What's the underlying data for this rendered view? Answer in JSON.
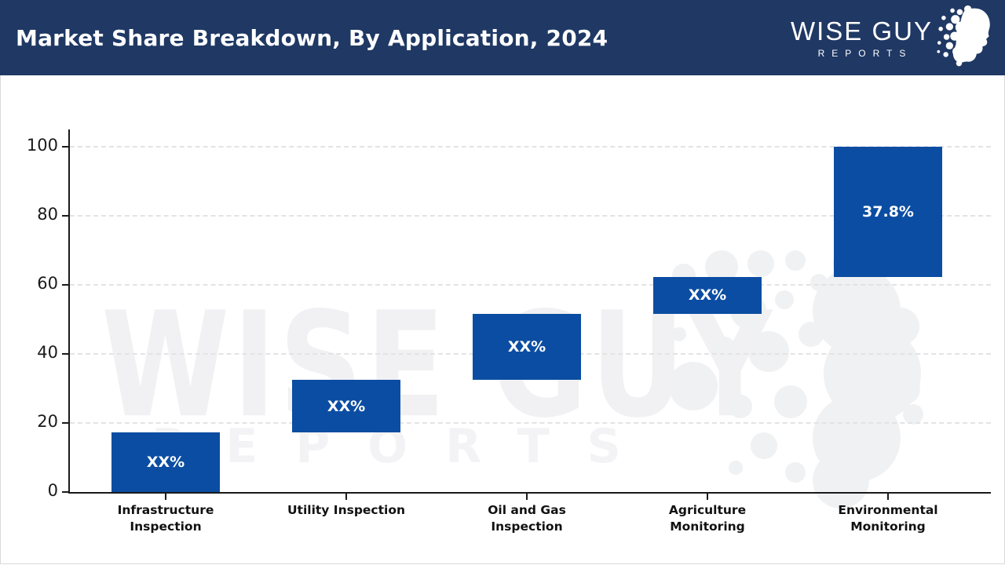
{
  "header": {
    "title": "Market Share Breakdown, By Application, 2024",
    "background_color": "#1F3864",
    "logo": {
      "wordmark": "WISE GUY",
      "subtext": "REPORTS"
    }
  },
  "watermark": {
    "line1": "WISE GUY",
    "line2": "REPORTS"
  },
  "chart_data": {
    "type": "bar",
    "variant": "floating-waterfall",
    "title": "Market Share Breakdown, By Application, 2024",
    "x_categories": [
      "Infrastructure Inspection",
      "Utility Inspection",
      "Oil and Gas Inspection",
      "Agriculture Monitoring",
      "Environmental Monitoring"
    ],
    "categories_lines": [
      [
        "Infrastructure",
        "Inspection"
      ],
      [
        "Utility Inspection"
      ],
      [
        "Oil and Gas",
        "Inspection"
      ],
      [
        "Agriculture",
        "Monitoring"
      ],
      [
        "Environmental",
        "Monitoring"
      ]
    ],
    "segments": [
      {
        "category": "Infrastructure Inspection",
        "start": 0,
        "end": 17.3,
        "label": "XX%"
      },
      {
        "category": "Utility Inspection",
        "start": 17.3,
        "end": 32.4,
        "label": "XX%"
      },
      {
        "category": "Oil and Gas Inspection",
        "start": 32.4,
        "end": 51.7,
        "label": "XX%"
      },
      {
        "category": "Agriculture Monitoring",
        "start": 51.7,
        "end": 62.2,
        "label": "XX%"
      },
      {
        "category": "Environmental Monitoring",
        "start": 62.2,
        "end": 100,
        "label": "37.8%"
      }
    ],
    "yticks": [
      0,
      20,
      40,
      60,
      80,
      100
    ],
    "ylim": [
      0,
      105
    ],
    "grid": {
      "horizontal": true,
      "style": "dashed",
      "color": "#E3E3E3"
    },
    "bar_color": "#0B4DA2",
    "bar_label_color": "#FFFFFF",
    "axis_color": "#1A1A1A",
    "legend": null
  }
}
